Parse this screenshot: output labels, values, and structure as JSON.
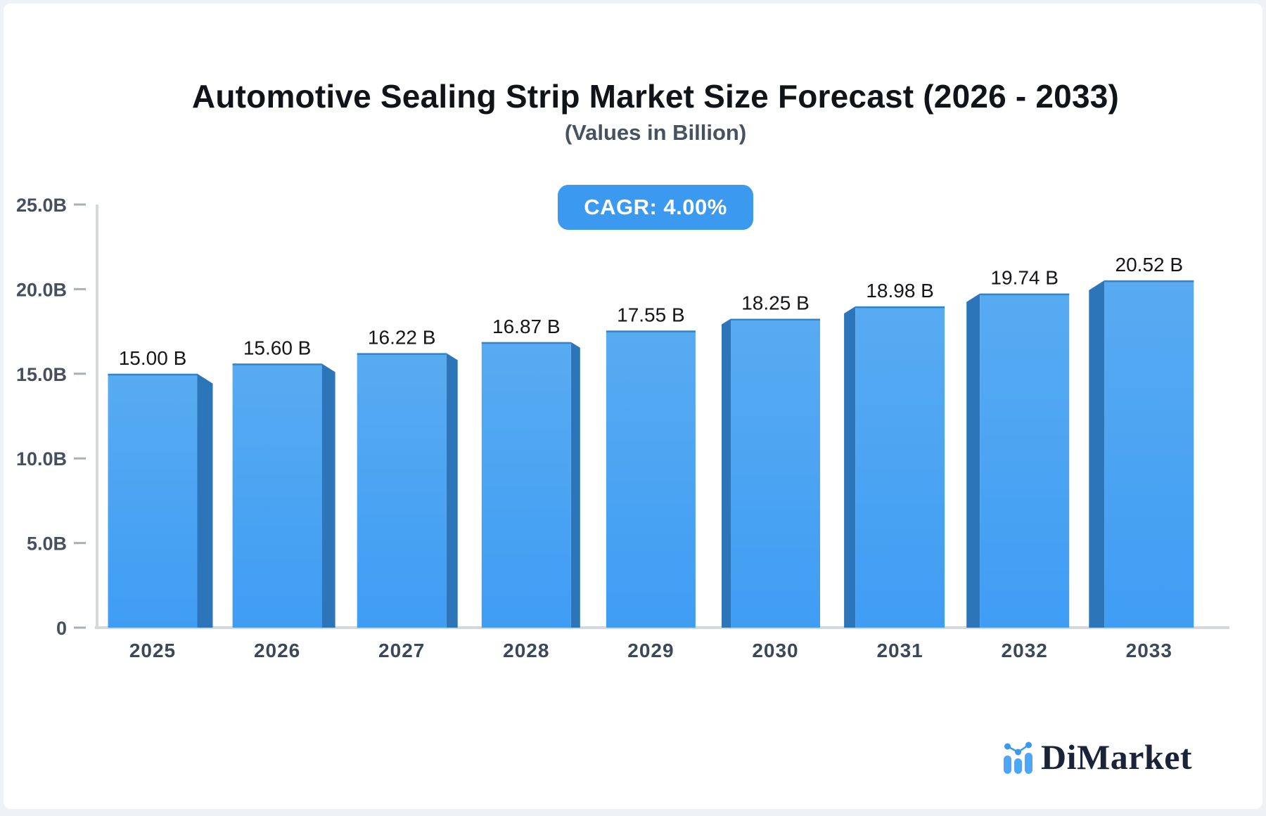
{
  "page": {
    "title": "Automotive Sealing Strip Market Size Forecast (2026 - 2033)",
    "subtitle": "(Values in Billion)",
    "badge_label": "CAGR: 4.00%"
  },
  "chart_data": {
    "type": "bar",
    "title": "Automotive Sealing Strip Market Size Forecast (2026 - 2033)",
    "subtitle": "(Values in Billion)",
    "categories": [
      "2025",
      "2026",
      "2027",
      "2028",
      "2029",
      "2030",
      "2031",
      "2032",
      "2033"
    ],
    "values": [
      15.0,
      15.6,
      16.22,
      16.87,
      17.55,
      18.25,
      18.98,
      19.74,
      20.52
    ],
    "bar_labels": [
      "15.00 B",
      "15.60 B",
      "16.22 B",
      "16.87 B",
      "17.55 B",
      "18.25 B",
      "18.98 B",
      "19.74 B",
      "20.52 B"
    ],
    "cagr": "4.00%",
    "unit": "Billion",
    "xlabel": "",
    "ylabel": "",
    "ylim": [
      0,
      25
    ],
    "yticks": [
      {
        "v": 0,
        "label": "0"
      },
      {
        "v": 5,
        "label": "5.0B"
      },
      {
        "v": 10,
        "label": "10.0B"
      },
      {
        "v": 15,
        "label": "15.0B"
      },
      {
        "v": 20,
        "label": "20.0B"
      },
      {
        "v": 25,
        "label": "25.0B"
      }
    ],
    "grid": false,
    "legend": null,
    "style": "3d-perspective-bars"
  },
  "logo": {
    "text": "DiMarket",
    "icon": "mini-bar-line-chart-icon"
  },
  "colors": {
    "accent": "#3b9af0",
    "badge_text": "#ffffff",
    "bar_top": "#58abf1",
    "bar_bottom": "#3f9df4",
    "bar_side": "#2c75b8",
    "bar_top_border": "#3584c8",
    "axis_line": "#d4d7db",
    "tick_mark": "#a9b0b8",
    "axis_label": "#3c4859",
    "ytick_label": "#454f60",
    "value_label": "#141619",
    "background": "#eef1f5",
    "card": "#ffffff",
    "logo_text": "#1a2338",
    "logo_blue": "#4da6f6",
    "logo_blue_dark": "#3c97f2"
  }
}
